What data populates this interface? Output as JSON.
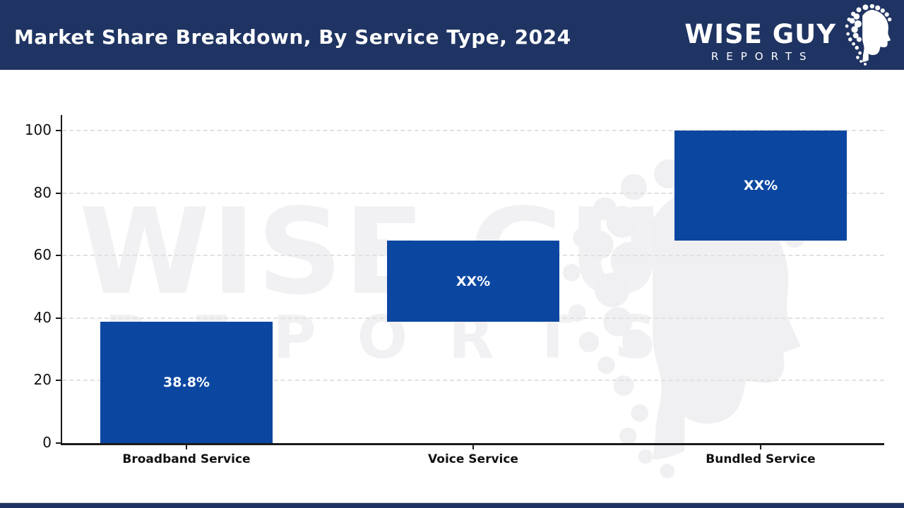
{
  "header": {
    "title": "Market Share Breakdown, By Service Type, 2024",
    "logo": {
      "wordmark": "WISE GUY",
      "subtext": "REPORTS"
    }
  },
  "watermark": {
    "line1": "WISE GUY",
    "line2": "REPORTS"
  },
  "chart_data": {
    "type": "bar",
    "subtype": "waterfall",
    "title": "Market Share Breakdown, By Service Type, 2024",
    "categories": [
      "Broadband Service",
      "Voice Service",
      "Bundled Service"
    ],
    "segments": [
      {
        "category": "Broadband Service",
        "start": 0,
        "end": 38.8,
        "value_label": "38.8%"
      },
      {
        "category": "Voice Service",
        "start": 38.8,
        "end": 64.8,
        "value_label": "XX%"
      },
      {
        "category": "Bundled Service",
        "start": 64.8,
        "end": 100,
        "value_label": "XX%"
      }
    ],
    "yticks": [
      0,
      20,
      40,
      60,
      80,
      100
    ],
    "ylim": [
      0,
      105
    ],
    "xlabel": "",
    "ylabel": "",
    "grid": "horizontal-dashed",
    "legend": "none",
    "bar_color": "#0b47a1",
    "value_label_color": "#ffffff",
    "axis_color": "#1a1a1a",
    "grid_color": "#e1e1e1"
  },
  "colors": {
    "header_bg": "#1f3462",
    "canvas_bg": "#ffffff",
    "watermark": "#f1f1f3"
  }
}
